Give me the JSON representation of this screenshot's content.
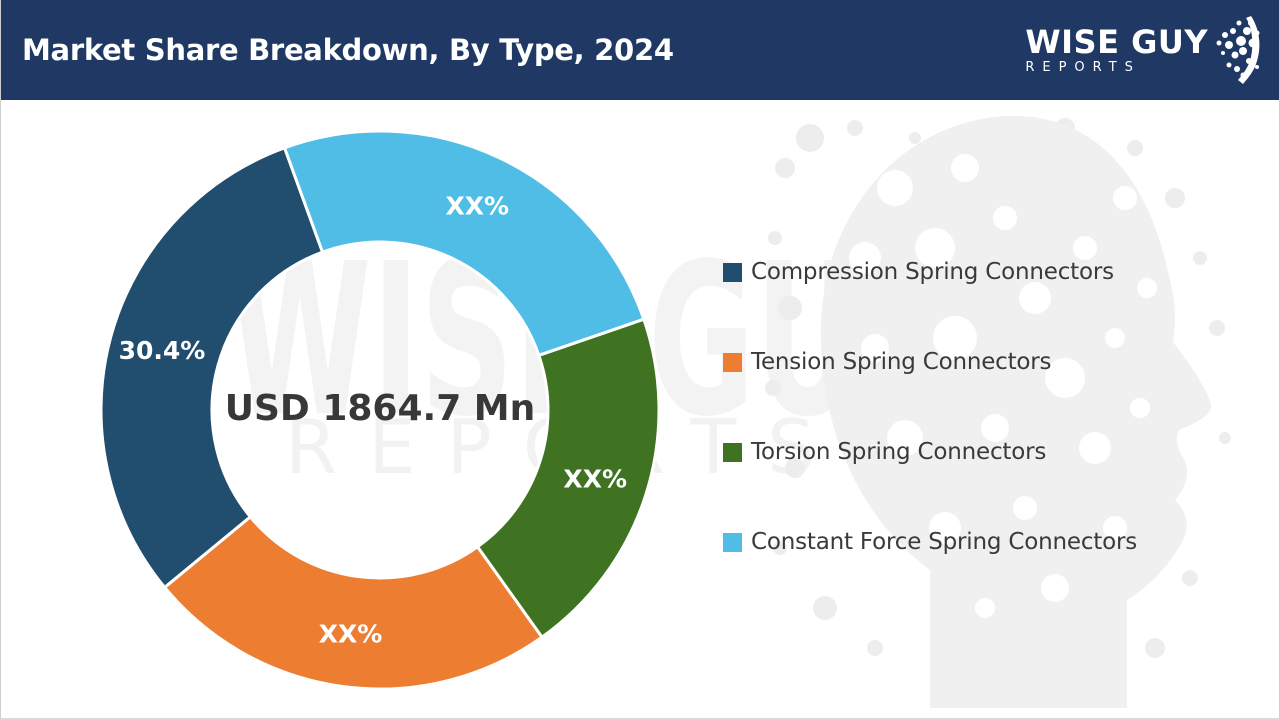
{
  "header": {
    "title": "Market Share Breakdown, By Type, 2024",
    "bg_color": "#1F3864",
    "logo": {
      "line1": "WISE GUY",
      "line2": "REPORTS"
    }
  },
  "watermark": {
    "line1": "WISE GUY",
    "line2": "REPORTS"
  },
  "chart_data": {
    "type": "pie",
    "subtype": "donut",
    "title": "Market Share Breakdown, By Type, 2024",
    "center_label": "USD 1864.7 Mn",
    "legend_position": "right",
    "segments": [
      {
        "label": "Compression Spring Connectors",
        "color": "#214E6E",
        "display_value": "30.4%",
        "value_pct": 30.4,
        "start_angle": 219.5,
        "end_angle": 110
      },
      {
        "label": "Tension Spring Connectors",
        "color": "#ED7D31",
        "display_value": "XX%",
        "value_pct": 23.9,
        "start_angle": -54.5,
        "end_angle": -140.5
      },
      {
        "label": "Torsion Spring Connectors",
        "color": "#3F7322",
        "display_value": "XX%",
        "value_pct": 20.4,
        "start_angle": 19,
        "end_angle": -54.5
      },
      {
        "label": "Constant Force Spring Connectors",
        "color": "#4FBDE6",
        "display_value": "XX%",
        "value_pct": 25.3,
        "start_angle": 110,
        "end_angle": 19
      }
    ]
  }
}
